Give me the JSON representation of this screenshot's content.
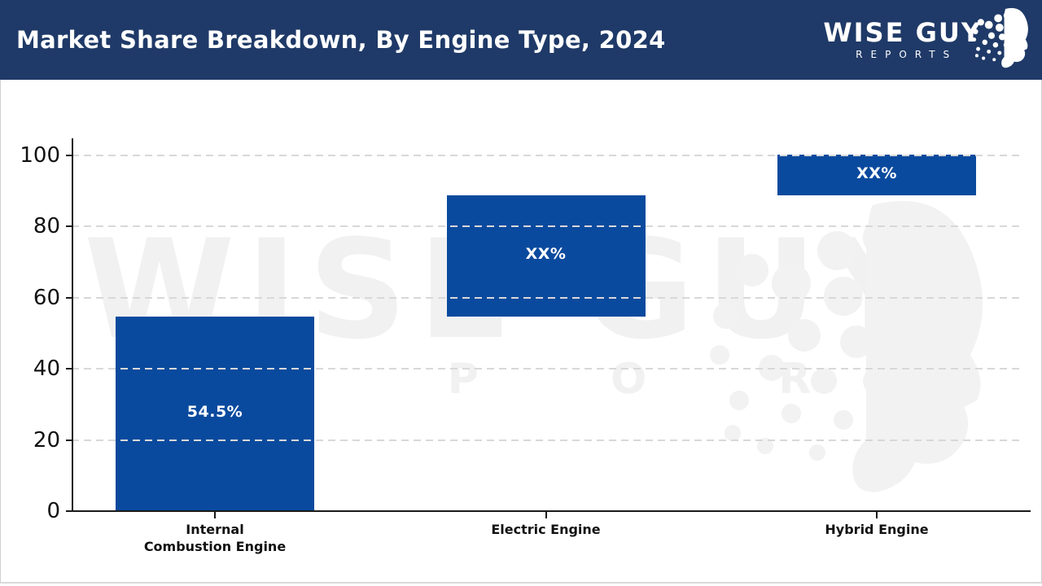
{
  "header": {
    "title": "Market Share Breakdown, By Engine Type, 2024",
    "logo": {
      "name_top": "WISE GUY",
      "name_bottom": "REPORTS",
      "face_icon": "dotted-head-profile"
    }
  },
  "watermark": {
    "text_top": "WISE GUY",
    "text_bottom": "R E P O R T S",
    "face_icon": "dotted-head-profile"
  },
  "chart_data": {
    "type": "bar",
    "subtype": "floating-waterfall",
    "title": "Market Share Breakdown, By Engine Type, 2024",
    "categories": [
      "Internal Combustion Engine",
      "Electric Engine",
      "Hybrid Engine"
    ],
    "category_lines": [
      [
        "Internal",
        "Combustion Engine"
      ],
      [
        "Electric Engine"
      ],
      [
        "Hybrid Engine"
      ]
    ],
    "segments": [
      {
        "category": "Internal Combustion Engine",
        "start": 0,
        "end": 54.5,
        "label": "54.5%"
      },
      {
        "category": "Electric Engine",
        "start": 54.5,
        "end": 88.5,
        "label": "XX%"
      },
      {
        "category": "Hybrid Engine",
        "start": 88.5,
        "end": 100,
        "label": "XX%"
      }
    ],
    "xlabel": "",
    "ylabel": "",
    "yticks": [
      0,
      20,
      40,
      60,
      80,
      100
    ],
    "ylim": [
      0,
      104.5
    ],
    "grid": {
      "visible": true,
      "orientation": "horizontal",
      "style": "dashed",
      "drawn_over_bars": true
    },
    "legend": null,
    "bar_color": "#0a4a9e",
    "bar_label_color": "#ffffff"
  },
  "colors": {
    "header_bg": "#1f3a68",
    "page_bg": "#ffffff",
    "axis": "#1a1a1a",
    "gridline": "#d8d8d8",
    "watermark": "#f1f1f1",
    "frame_border": "#d9d9d9"
  }
}
